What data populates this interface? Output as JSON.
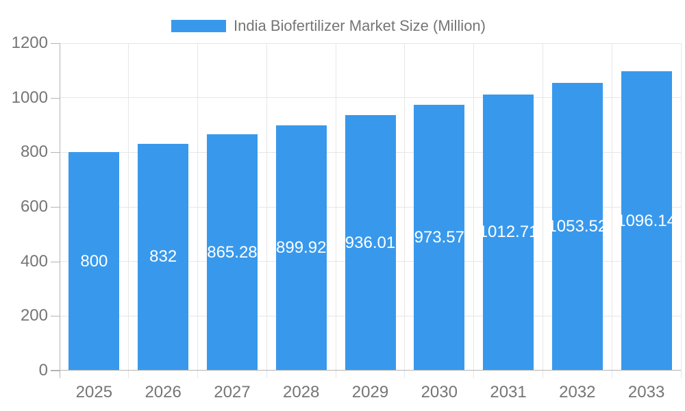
{
  "chart_data": {
    "type": "bar",
    "title": "India Biofertilizer Market Size (Million)",
    "legend": "India Biofertilizer Market Size (Million)",
    "legend_position": "top-center",
    "categories": [
      "2025",
      "2026",
      "2027",
      "2028",
      "2029",
      "2030",
      "2031",
      "2032",
      "2033"
    ],
    "values": [
      800,
      832,
      865.28,
      899.92,
      936.01,
      973.57,
      1012.71,
      1053.52,
      1096.14
    ],
    "value_labels": [
      "800",
      "832",
      "865.28",
      "899.92",
      "936.01",
      "973.57",
      "1012.71",
      "1053.52",
      "1096.14"
    ],
    "xlabel": "",
    "ylabel": "",
    "ylim": [
      0,
      1200
    ],
    "yticks": [
      0,
      200,
      400,
      600,
      800,
      1000,
      1200
    ],
    "grid": true,
    "colors": {
      "bar": "#3899EC",
      "grid": "#E6E6E6",
      "axis": "#B3B3B3",
      "label_text": "#757575",
      "value_text": "#FFFFFF",
      "background": "#FFFFFF"
    }
  }
}
